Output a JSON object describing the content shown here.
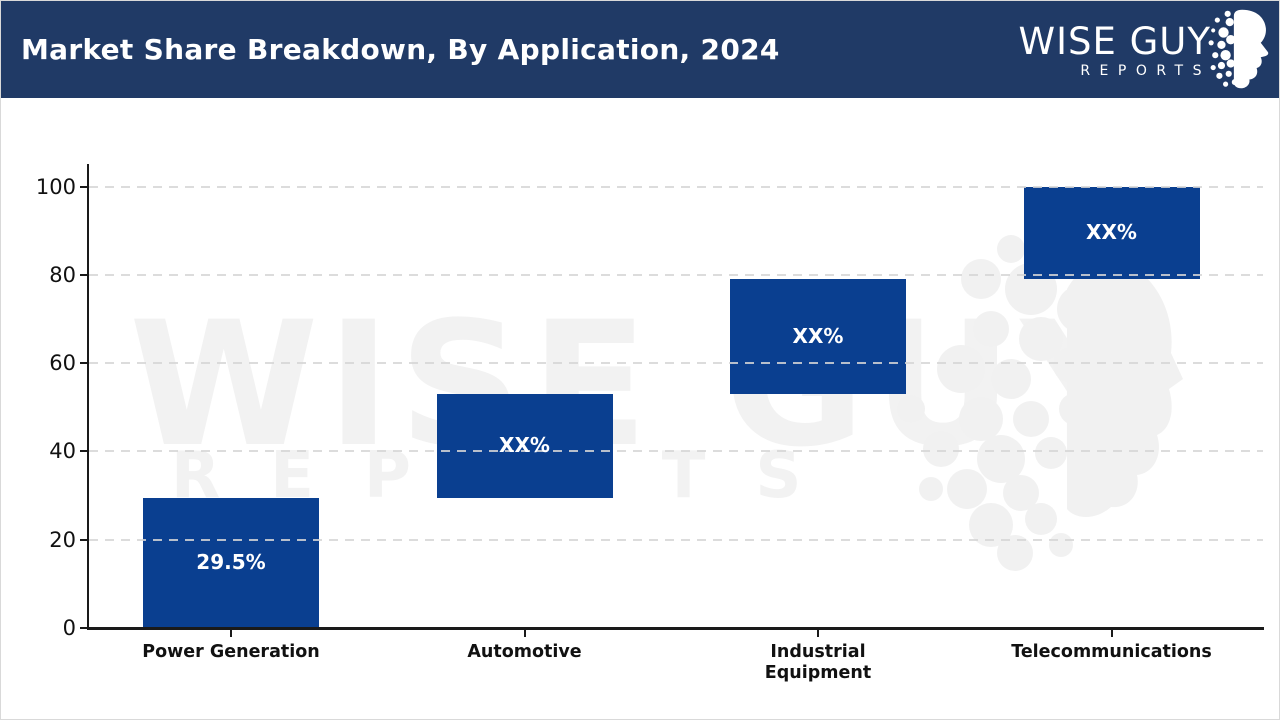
{
  "header": {
    "title": "Market Share Breakdown, By Application, 2024",
    "logo": {
      "name": "WISE GUY",
      "reports": "REPORTS"
    }
  },
  "watermark": {
    "name": "WISE GUY",
    "reports": "REPORTS"
  },
  "chart_data": {
    "type": "bar",
    "subtype": "waterfall",
    "title": "Market Share Breakdown, By Application, 2024",
    "unit": "percent market share",
    "categories": [
      "Power Generation",
      "Automotive",
      "Industrial Equipment",
      "Telecommunications"
    ],
    "category_label_lines": [
      [
        "Power Generation"
      ],
      [
        "Automotive"
      ],
      [
        "Industrial",
        "Equipment"
      ],
      [
        "Telecommunications"
      ]
    ],
    "segments": [
      {
        "category": "Power Generation",
        "start": 0,
        "end": 29.5,
        "label": "29.5%"
      },
      {
        "category": "Automotive",
        "start": 29.5,
        "end": 53,
        "label": "XX%"
      },
      {
        "category": "Industrial Equipment",
        "start": 53,
        "end": 79,
        "label": "XX%"
      },
      {
        "category": "Telecommunications",
        "start": 79,
        "end": 100,
        "label": "XX%"
      }
    ],
    "yticks": [
      0,
      20,
      40,
      60,
      80,
      100
    ],
    "ylim": [
      0,
      105
    ],
    "xlabel": "",
    "ylabel": "",
    "legend": "none",
    "grid": "horizontal-dashed",
    "bar_color": "#0a3f90",
    "gridline_color": "#d6d6d6",
    "axis_color": "#1a1a1a",
    "header_color": "#203a66"
  }
}
